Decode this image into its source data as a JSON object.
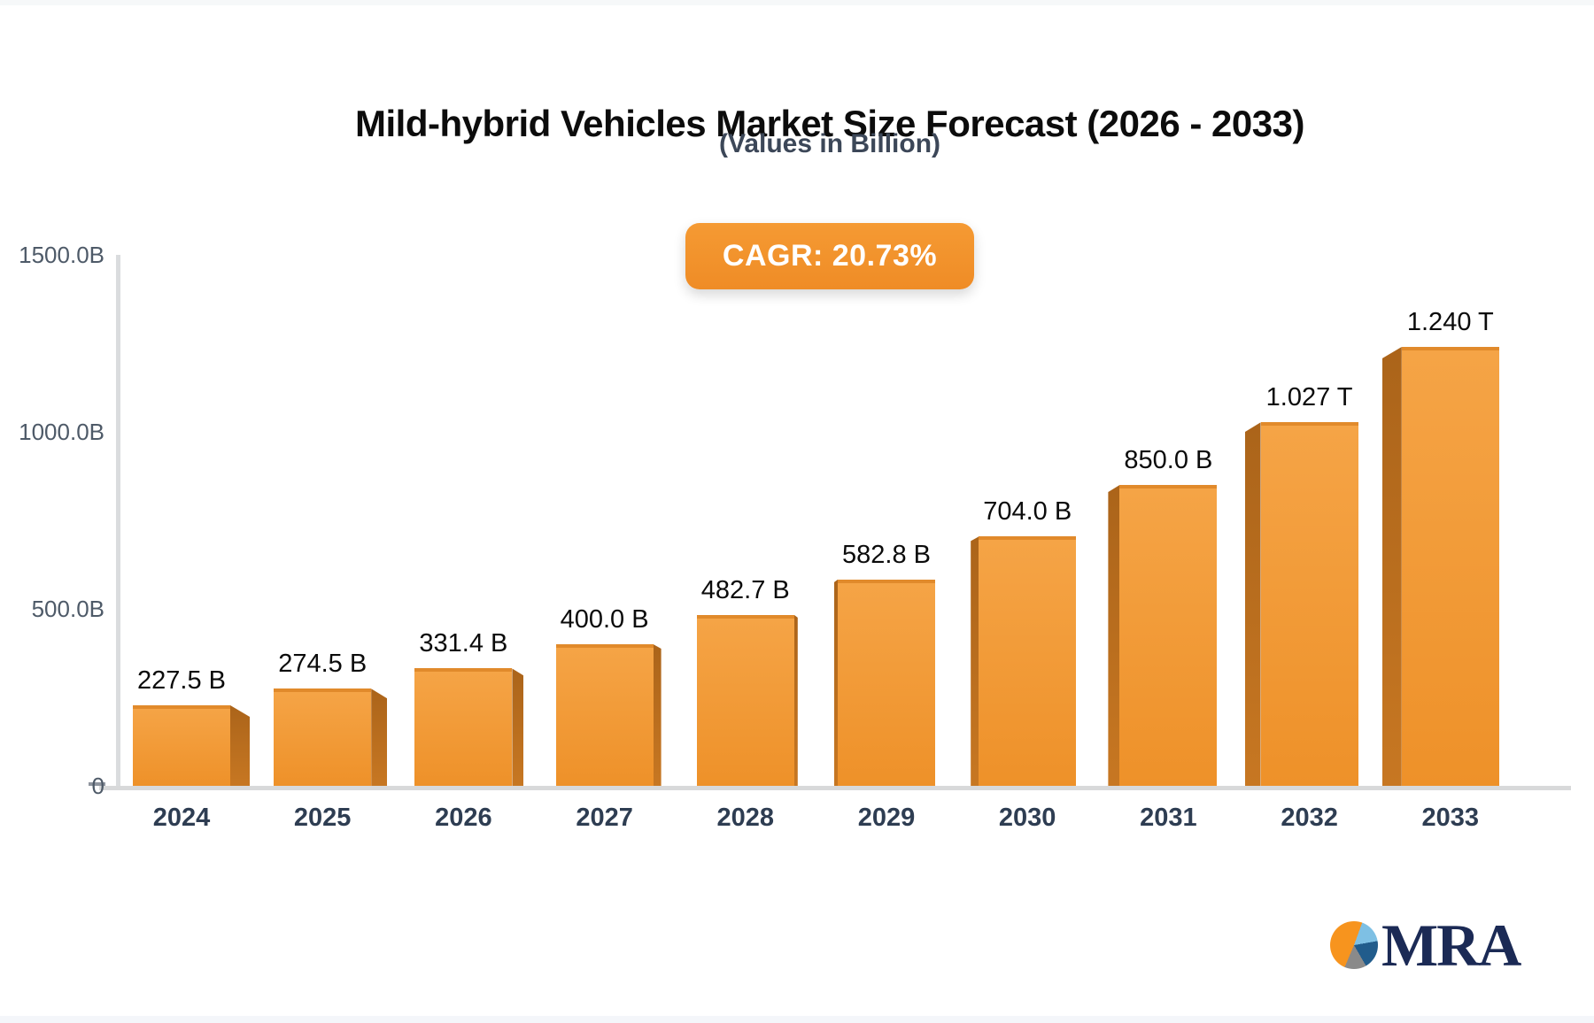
{
  "page": {
    "title": "Mild-hybrid Vehicles Market Size Forecast (2026 - 2033)",
    "subtitle": "(Values in Billion)",
    "cagr_badge": "CAGR: 20.73%"
  },
  "chart_data": {
    "type": "bar",
    "title": "Mild-hybrid Vehicles Market Size Forecast (2026 - 2033)",
    "subtitle": "(Values in Billion)",
    "annotation": "CAGR: 20.73%",
    "categories": [
      "2024",
      "2025",
      "2026",
      "2027",
      "2028",
      "2029",
      "2030",
      "2031",
      "2032",
      "2033"
    ],
    "values": [
      227.5,
      274.5,
      331.4,
      400.0,
      482.7,
      582.8,
      704.0,
      850.0,
      1027.0,
      1240.0
    ],
    "value_labels": [
      "227.5 B",
      "274.5 B",
      "331.4 B",
      "400.0 B",
      "482.7 B",
      "582.8 B",
      "704.0 B",
      "850.0 B",
      "1.027 T",
      "1.240 T"
    ],
    "unit": "Billion",
    "ylim": [
      0,
      1500
    ],
    "yticks": [
      {
        "value": 1500,
        "label": "1500.0B"
      },
      {
        "value": 1000,
        "label": "1000.0B"
      },
      {
        "value": 500,
        "label": "500.0B"
      },
      {
        "value": 0,
        "label": "0"
      }
    ],
    "grid": false,
    "legend": false,
    "bar_style": "3d-perspective-center"
  },
  "colors": {
    "bar_face_top": "#f5a446",
    "bar_face_bottom": "#ee9129",
    "bar_top_edge": "#e18a2b",
    "bar_side_dark": "#ab641a",
    "bar_side_light": "#c77722",
    "badge_background": "#f2912d",
    "badge_text": "#ffffff",
    "axis_line": "#dadcde",
    "x_label_color": "#2e3d52",
    "y_label_color": "#4e5a68",
    "value_label_color": "#0b0b0b",
    "logo_navy": "#1b2a55",
    "logo_orange": "#f7941e",
    "logo_light_blue": "#7ec0e4",
    "logo_dark_blue": "#215c8c",
    "logo_gray": "#8a8a8a"
  },
  "logo": {
    "text": "MRA"
  }
}
